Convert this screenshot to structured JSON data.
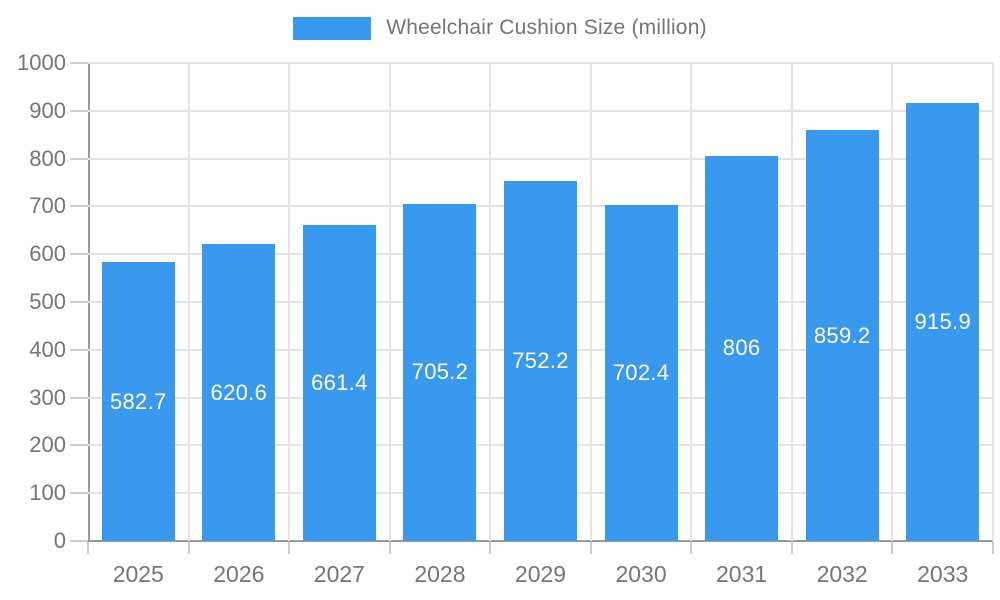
{
  "colors": {
    "bar": "#3999ee",
    "axis_line": "#9b9b9b",
    "gridline": "#e3e3e3",
    "tick": "#cccccc",
    "axis_text": "#757575",
    "bar_value_text": "#ffffff",
    "background": "#ffffff"
  },
  "legend": {
    "label": "Wheelchair Cushion Size (million)",
    "position": "top-center"
  },
  "chart_data": {
    "type": "bar",
    "title": "Wheelchair Cushion Size (million)",
    "xlabel": "",
    "ylabel": "",
    "categories": [
      "2025",
      "2026",
      "2027",
      "2028",
      "2029",
      "2030",
      "2031",
      "2032",
      "2033"
    ],
    "series": [
      {
        "name": "Wheelchair Cushion Size (million)",
        "values": [
          582.7,
          620.6,
          661.4,
          705.2,
          752.2,
          702.4,
          806,
          859.2,
          915.9
        ],
        "value_labels": [
          "582.7",
          "620.6",
          "661.4",
          "705.2",
          "752.2",
          "702.4",
          "806",
          "859.2",
          "915.9"
        ]
      }
    ],
    "ylim": [
      0,
      1000
    ],
    "yticks": [
      0,
      100,
      200,
      300,
      400,
      500,
      600,
      700,
      800,
      900,
      1000
    ],
    "ytick_labels": [
      "0",
      "100",
      "200",
      "300",
      "400",
      "500",
      "600",
      "700",
      "800",
      "900",
      "1000"
    ],
    "grid": true,
    "legend_position": "top-center",
    "value_label_position": "center-inside-bar"
  }
}
